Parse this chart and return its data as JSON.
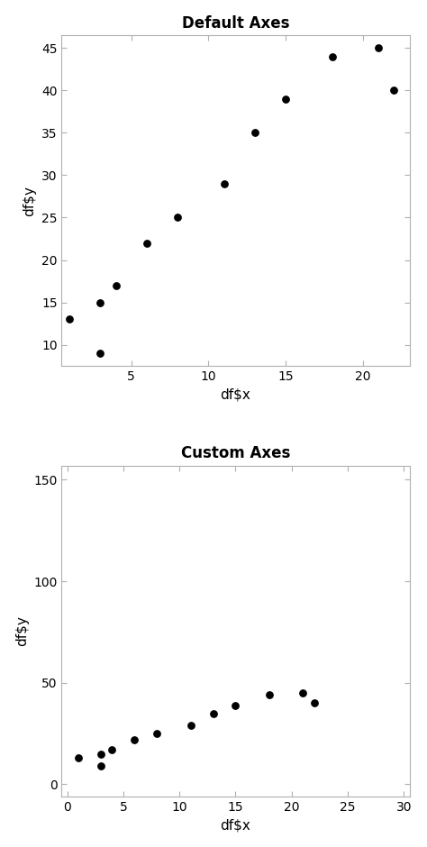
{
  "x": [
    1,
    3,
    3,
    4,
    6,
    8,
    11,
    13,
    15,
    18,
    21,
    22
  ],
  "y": [
    13,
    15,
    9,
    17,
    22,
    25,
    29,
    35,
    39,
    44,
    45,
    40
  ],
  "title1": "Default Axes",
  "title2": "Custom Axes",
  "xlabel": "df$x",
  "ylabel": "df$y",
  "plot1_xlim": [
    0.5,
    23
  ],
  "plot1_ylim": [
    7.5,
    46.5
  ],
  "plot1_xticks": [
    5,
    10,
    15,
    20
  ],
  "plot1_yticks": [
    10,
    15,
    20,
    25,
    30,
    35,
    40,
    45
  ],
  "plot2_xlim": [
    -0.5,
    30.5
  ],
  "plot2_ylim": [
    -6,
    157
  ],
  "plot2_xticks": [
    0,
    5,
    10,
    15,
    20,
    25,
    30
  ],
  "plot2_yticks": [
    0,
    50,
    100,
    150
  ],
  "dot_color": "black",
  "dot_size": 28,
  "bg_color": "white",
  "spine_color": "#b0b0b0",
  "title_fontsize": 12,
  "label_fontsize": 11,
  "tick_fontsize": 10
}
